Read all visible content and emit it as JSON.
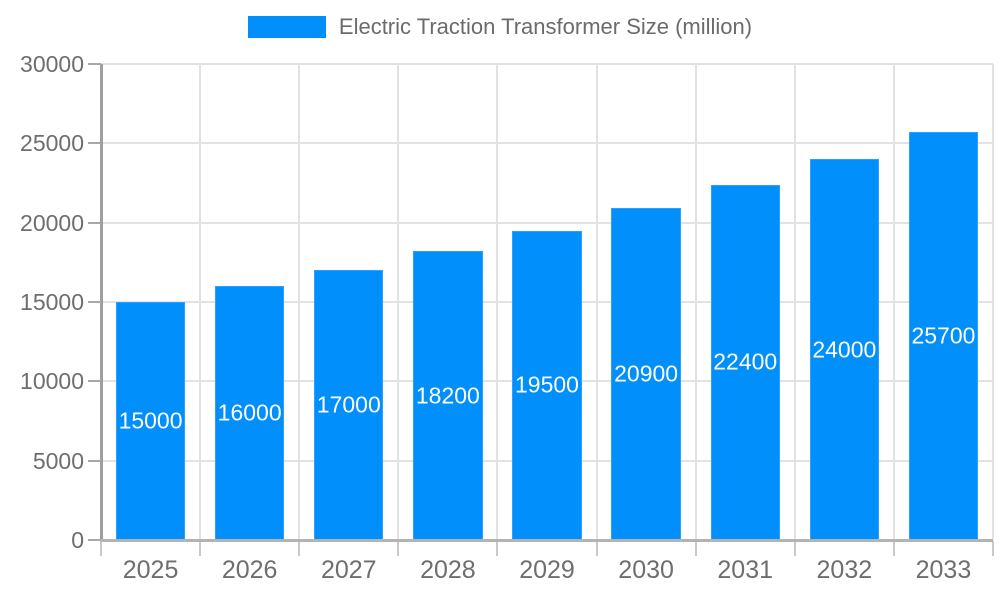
{
  "legend": {
    "label": "Electric Traction Transformer Size (million)"
  },
  "chart_data": {
    "type": "bar",
    "title": "Electric Traction Transformer Size (million)",
    "categories": [
      "2025",
      "2026",
      "2027",
      "2028",
      "2029",
      "2030",
      "2031",
      "2032",
      "2033"
    ],
    "values": [
      15000,
      16000,
      17000,
      18200,
      19500,
      20900,
      22400,
      24000,
      25700
    ],
    "series": [
      {
        "name": "Electric Traction Transformer Size (million)",
        "values": [
          15000,
          16000,
          17000,
          18200,
          19500,
          20900,
          22400,
          24000,
          25700
        ]
      }
    ],
    "xlabel": "",
    "ylabel": "",
    "ylim": [
      0,
      30000
    ],
    "yticks": [
      0,
      5000,
      10000,
      15000,
      20000,
      25000,
      30000
    ],
    "grid": true,
    "legend_position": "top",
    "bar_color": "#008FFB",
    "value_label_color": "#FFFFFF",
    "gridline_color": "#e2e2e2",
    "axis_label_color": "#6e6e6e"
  }
}
